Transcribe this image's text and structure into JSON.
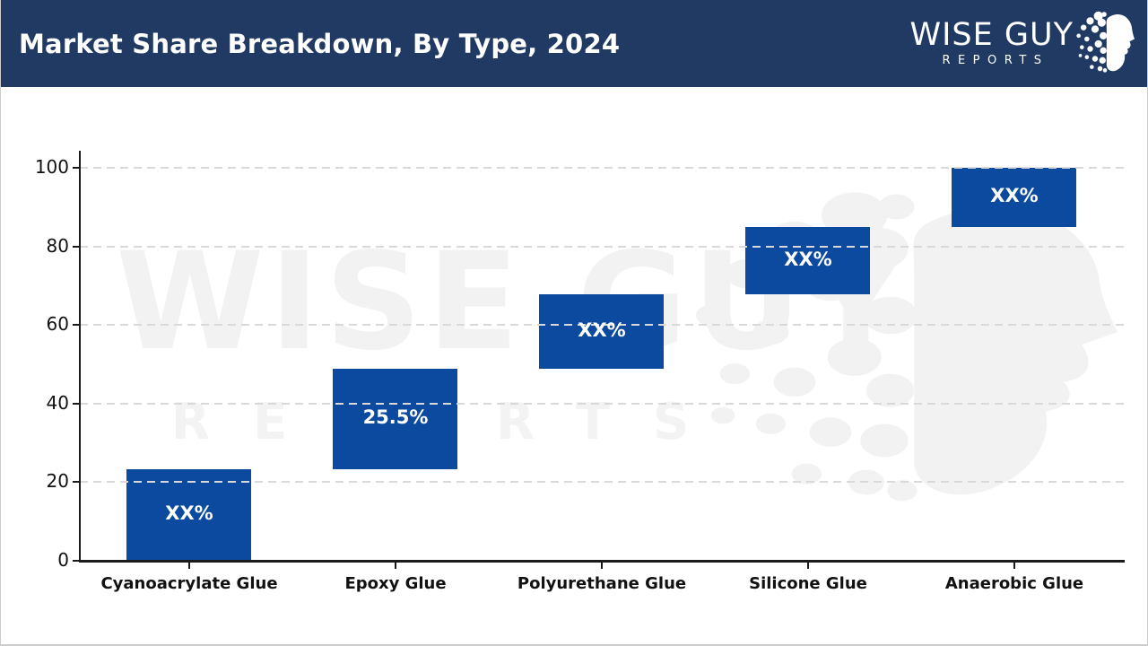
{
  "header": {
    "title": "Market Share Breakdown, By Type, 2024",
    "bg_color": "#213a64",
    "logo": {
      "wordmark": "WISE GUY",
      "subtext": "REPORTS"
    }
  },
  "watermark": {
    "wordmark": "WISE GUY",
    "subtext": "REPORTS"
  },
  "chart_data": {
    "type": "bar",
    "subtype": "floating-waterfall",
    "title": "Market Share Breakdown, By Type, 2024",
    "xlabel": "",
    "ylabel": "",
    "ylim": [
      0,
      100
    ],
    "yticks": [
      0,
      20,
      40,
      60,
      80,
      100
    ],
    "grid": "horizontal-dashed-above-bars",
    "legend": "none",
    "categories": [
      "Cyanoacrylate Glue",
      "Epoxy Glue",
      "Polyurethane Glue",
      "Silicone Glue",
      "Anaerobic Glue"
    ],
    "series": [
      {
        "name": "Market Share (%)",
        "segments": [
          {
            "start": 0,
            "end": 23.3,
            "label": "XX%"
          },
          {
            "start": 23.3,
            "end": 48.8,
            "label": "25.5%"
          },
          {
            "start": 48.8,
            "end": 67.8,
            "label": "XX%"
          },
          {
            "start": 67.8,
            "end": 84.9,
            "label": "XX%"
          },
          {
            "start": 84.9,
            "end": 100,
            "label": "XX%"
          }
        ]
      }
    ],
    "bar_color": "#0b4a9e",
    "bar_label_color": "#ffffff",
    "grid_color": "#d9d9d9",
    "axis_color": "#1a1a1a",
    "tick_label_color": "#111111"
  }
}
